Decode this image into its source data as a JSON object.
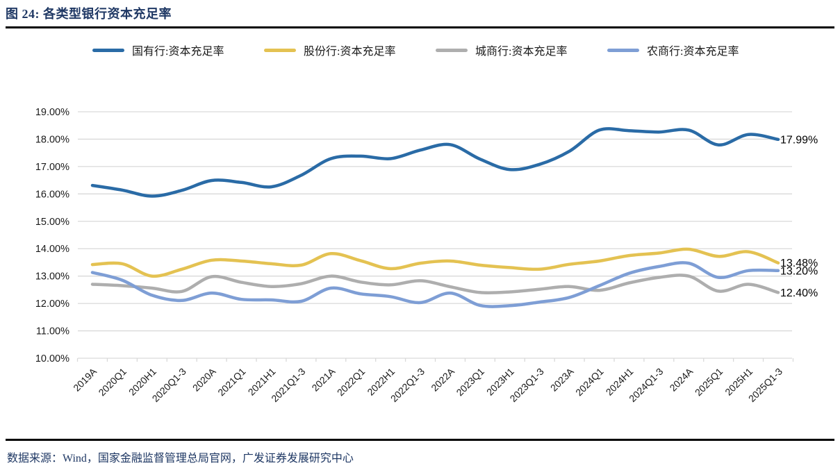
{
  "figure": {
    "title": "图 24:  各类型银行资本充足率",
    "source": "数据来源：Wind，国家金融监督管理总局官网，广发证券发展研究中心"
  },
  "colors": {
    "title_navy": "#1F3864",
    "rule_black": "#000000",
    "gridline": "#D9D9D9",
    "axis_line": "#D9D9D9",
    "axis_text": "#1a1a1a",
    "end_label_text": "#000000"
  },
  "chart_data": {
    "type": "line",
    "title": "各类型银行资本充足率",
    "xlabel": "",
    "ylabel": "",
    "ylim": [
      10,
      19
    ],
    "ytick_step": 1,
    "ytick_suffix": "%",
    "grid": true,
    "legend_position": "top",
    "categories": [
      "2019A",
      "2020Q1",
      "2020H1",
      "2020Q1-3",
      "2020A",
      "2021Q1",
      "2021H1",
      "2021Q1-3",
      "2021A",
      "2022Q1",
      "2022H1",
      "2022Q1-3",
      "2022A",
      "2023Q1",
      "2023H1",
      "2023Q1-3",
      "2023A",
      "2024Q1",
      "2024H1",
      "2024Q1-3",
      "2024A",
      "2025Q1",
      "2025H1",
      "2025Q1-3"
    ],
    "series": [
      {
        "name": "国有行:资本充足率",
        "color": "#2a6ba6",
        "z": 4,
        "end_label": "17.99%",
        "values": [
          16.31,
          16.14,
          15.92,
          16.13,
          16.49,
          16.42,
          16.26,
          16.68,
          17.29,
          17.38,
          17.29,
          17.6,
          17.8,
          17.27,
          16.89,
          17.08,
          17.56,
          18.33,
          18.31,
          18.26,
          18.33,
          17.79,
          18.17,
          17.99
        ]
      },
      {
        "name": "股份行:资本充足率",
        "color": "#e4c252",
        "z": 2,
        "end_label": "13.48%",
        "values": [
          13.42,
          13.45,
          13.0,
          13.25,
          13.58,
          13.55,
          13.45,
          13.4,
          13.82,
          13.56,
          13.27,
          13.47,
          13.55,
          13.4,
          13.31,
          13.25,
          13.43,
          13.55,
          13.75,
          13.84,
          13.98,
          13.72,
          13.89,
          13.48
        ]
      },
      {
        "name": "城商行:资本充足率",
        "color": "#aeaeae",
        "z": 1,
        "end_label": "12.40%",
        "values": [
          12.7,
          12.65,
          12.56,
          12.44,
          12.98,
          12.77,
          12.62,
          12.72,
          13.0,
          12.78,
          12.68,
          12.83,
          12.61,
          12.4,
          12.42,
          12.52,
          12.62,
          12.48,
          12.75,
          12.95,
          13.0,
          12.45,
          12.7,
          12.4
        ]
      },
      {
        "name": "农商行:资本充足率",
        "color": "#7e9ed5",
        "z": 3,
        "end_label": "13.20%",
        "values": [
          13.13,
          12.85,
          12.3,
          12.11,
          12.38,
          12.15,
          12.13,
          12.08,
          12.56,
          12.35,
          12.25,
          12.03,
          12.38,
          11.93,
          11.92,
          12.05,
          12.22,
          12.65,
          13.1,
          13.35,
          13.47,
          12.95,
          13.2,
          13.2
        ]
      }
    ]
  }
}
